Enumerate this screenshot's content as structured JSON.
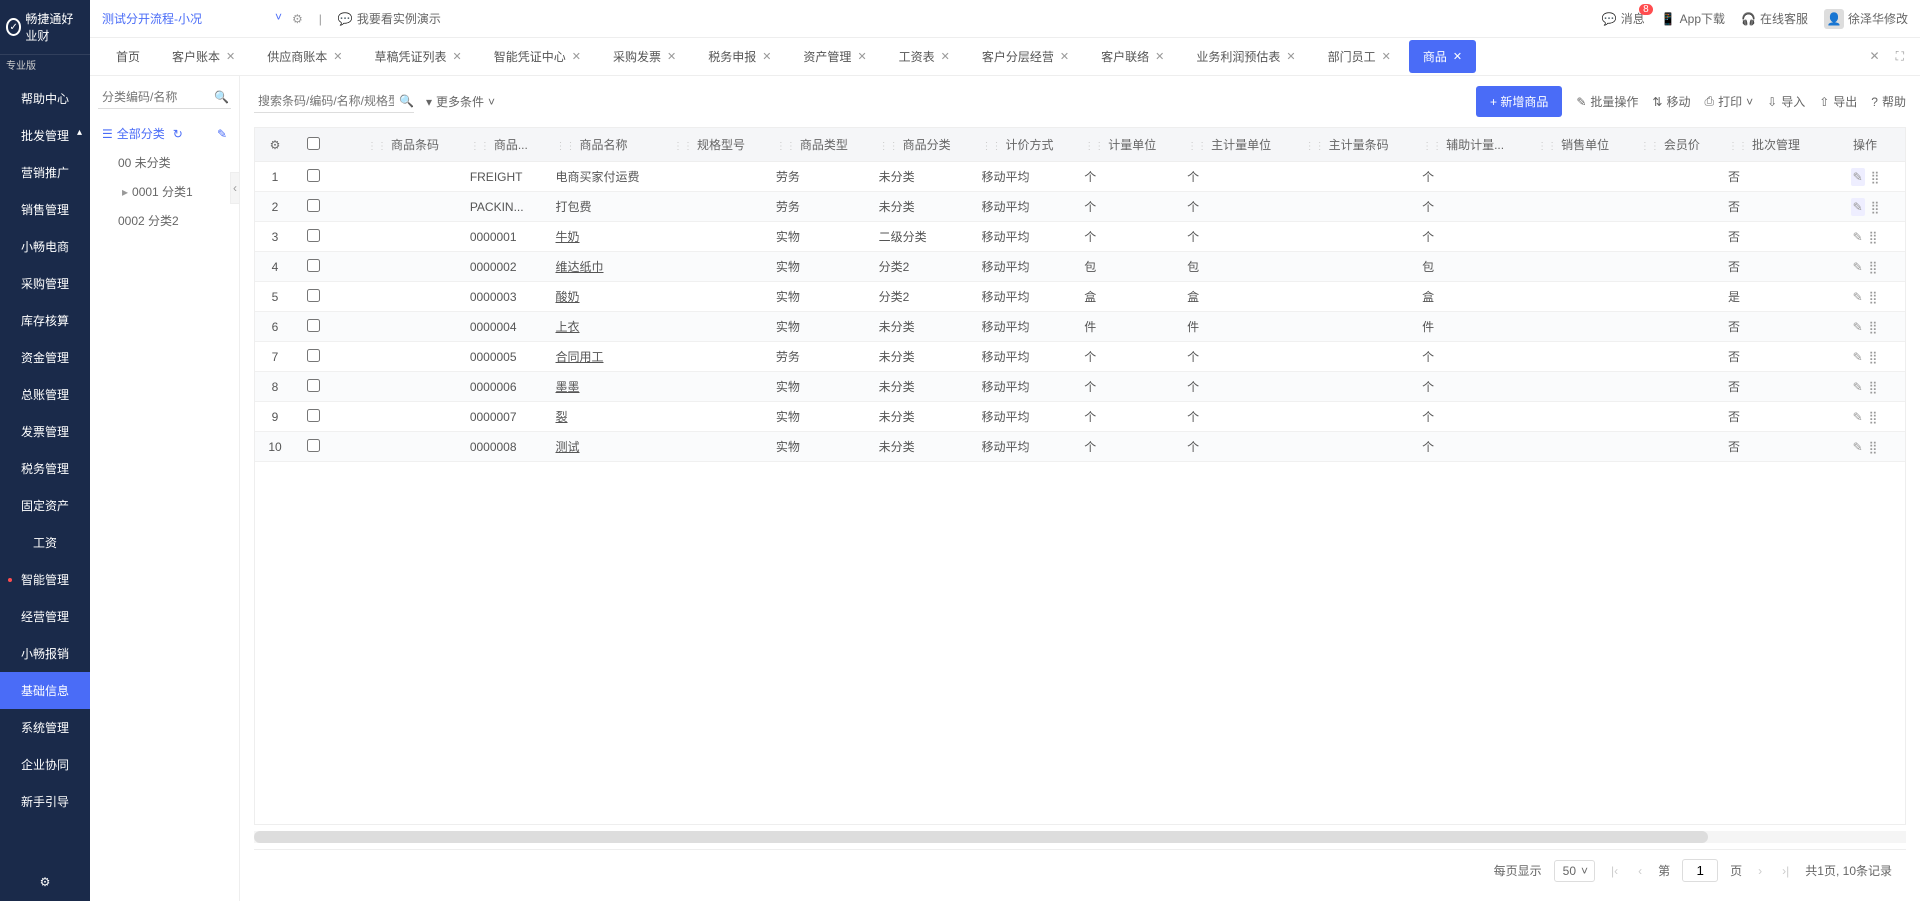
{
  "logo": {
    "brand": "畅捷通好业财",
    "edition": "专业版"
  },
  "sidebar": {
    "items": [
      {
        "label": "帮助中心",
        "active": false,
        "expanded": false
      },
      {
        "label": "批发管理",
        "active": false,
        "expanded": true
      },
      {
        "label": "营销推广",
        "active": false
      },
      {
        "label": "销售管理",
        "active": false
      },
      {
        "label": "小畅电商",
        "active": false
      },
      {
        "label": "采购管理",
        "active": false
      },
      {
        "label": "库存核算",
        "active": false
      },
      {
        "label": "资金管理",
        "active": false
      },
      {
        "label": "总账管理",
        "active": false
      },
      {
        "label": "发票管理",
        "active": false
      },
      {
        "label": "税务管理",
        "active": false
      },
      {
        "label": "固定资产",
        "active": false
      },
      {
        "label": "工资",
        "active": false
      },
      {
        "label": "智能管理",
        "active": false,
        "hasDot": true
      },
      {
        "label": "经营管理",
        "active": false
      },
      {
        "label": "小畅报销",
        "active": false
      },
      {
        "label": "基础信息",
        "active": true
      },
      {
        "label": "系统管理",
        "active": false
      },
      {
        "label": "企业协同",
        "active": false
      },
      {
        "label": "新手引导",
        "active": false
      }
    ]
  },
  "topbar": {
    "breadcrumb": "测试分开流程-小况",
    "demoLink": "我要看实例演示",
    "links": {
      "message": "消息",
      "messageBadge": "8",
      "download": "App下载",
      "service": "在线客服",
      "user": "徐泽华修改"
    }
  },
  "tabs": {
    "items": [
      {
        "label": "首页",
        "closable": false
      },
      {
        "label": "客户账本",
        "closable": true
      },
      {
        "label": "供应商账本",
        "closable": true
      },
      {
        "label": "草稿凭证列表",
        "closable": true
      },
      {
        "label": "智能凭证中心",
        "closable": true
      },
      {
        "label": "采购发票",
        "closable": true
      },
      {
        "label": "税务申报",
        "closable": true
      },
      {
        "label": "资产管理",
        "closable": true
      },
      {
        "label": "工资表",
        "closable": true
      },
      {
        "label": "客户分层经营",
        "closable": true
      },
      {
        "label": "客户联络",
        "closable": true
      },
      {
        "label": "业务利润预估表",
        "closable": true
      },
      {
        "label": "部门员工",
        "closable": true
      },
      {
        "label": "商品",
        "closable": true,
        "active": true
      }
    ]
  },
  "tree": {
    "searchPlaceholder": "分类编码/名称",
    "root": "全部分类",
    "nodes": [
      {
        "label": "00 未分类",
        "level": 2
      },
      {
        "label": "0001 分类1",
        "level": 1,
        "hasChild": true
      },
      {
        "label": "0002 分类2",
        "level": 2
      }
    ]
  },
  "toolbar": {
    "searchPlaceholder": "搜索条码/编码/名称/规格型号/别名",
    "moreFilter": "更多条件",
    "addBtn": "+ 新增商品",
    "batchOp": "批量操作",
    "move": "移动",
    "print": "打印",
    "import": "导入",
    "export": "导出",
    "help": "帮助"
  },
  "table": {
    "columns": [
      "",
      "",
      "",
      "商品条码",
      "商品...",
      "商品名称",
      "规格型号",
      "商品类型",
      "商品分类",
      "计价方式",
      "计量单位",
      "主计量单位",
      "主计量条码",
      "辅助计量...",
      "销售单位",
      "会员价",
      "批次管理",
      "操作"
    ],
    "rows": [
      {
        "idx": "1",
        "barcode": "",
        "code": "FREIGHT",
        "name": "电商买家付运费",
        "type": "劳务",
        "cat": "未分类",
        "price": "移动平均",
        "unit": "个",
        "mainUnit": "个",
        "aux": "个",
        "batch": "否",
        "editable": true
      },
      {
        "idx": "2",
        "barcode": "",
        "code": "PACKIN...",
        "name": "打包费",
        "type": "劳务",
        "cat": "未分类",
        "price": "移动平均",
        "unit": "个",
        "mainUnit": "个",
        "aux": "个",
        "batch": "否",
        "editable": true
      },
      {
        "idx": "3",
        "barcode": "",
        "code": "0000001",
        "name": "牛奶",
        "nameLink": true,
        "type": "实物",
        "cat": "二级分类",
        "price": "移动平均",
        "unit": "个",
        "mainUnit": "个",
        "aux": "个",
        "batch": "否"
      },
      {
        "idx": "4",
        "barcode": "",
        "code": "0000002",
        "name": "维达纸巾",
        "nameLink": true,
        "type": "实物",
        "cat": "分类2",
        "price": "移动平均",
        "unit": "包",
        "mainUnit": "包",
        "aux": "包",
        "batch": "否"
      },
      {
        "idx": "5",
        "barcode": "",
        "code": "0000003",
        "name": "酸奶",
        "nameLink": true,
        "type": "实物",
        "cat": "分类2",
        "price": "移动平均",
        "unit": "盒",
        "mainUnit": "盒",
        "aux": "盒",
        "batch": "是"
      },
      {
        "idx": "6",
        "barcode": "",
        "code": "0000004",
        "name": "上衣",
        "nameLink": true,
        "type": "实物",
        "cat": "未分类",
        "price": "移动平均",
        "unit": "件",
        "mainUnit": "件",
        "aux": "件",
        "batch": "否"
      },
      {
        "idx": "7",
        "barcode": "",
        "code": "0000005",
        "name": "合同用工",
        "nameLink": true,
        "type": "劳务",
        "cat": "未分类",
        "price": "移动平均",
        "unit": "个",
        "mainUnit": "个",
        "aux": "个",
        "batch": "否"
      },
      {
        "idx": "8",
        "barcode": "",
        "code": "0000006",
        "name": "墨墨",
        "nameLink": true,
        "type": "实物",
        "cat": "未分类",
        "price": "移动平均",
        "unit": "个",
        "mainUnit": "个",
        "aux": "个",
        "batch": "否"
      },
      {
        "idx": "9",
        "barcode": "",
        "code": "0000007",
        "name": "裂",
        "nameLink": true,
        "type": "实物",
        "cat": "未分类",
        "price": "移动平均",
        "unit": "个",
        "mainUnit": "个",
        "aux": "个",
        "batch": "否"
      },
      {
        "idx": "10",
        "barcode": "",
        "code": "0000008",
        "name": "测试",
        "nameLink": true,
        "type": "实物",
        "cat": "未分类",
        "price": "移动平均",
        "unit": "个",
        "mainUnit": "个",
        "aux": "个",
        "batch": "否"
      }
    ]
  },
  "pagination": {
    "perPageLabel": "每页显示",
    "perPage": "50",
    "pageLabel1": "第",
    "pageNum": "1",
    "pageLabel2": "页",
    "summary": "共1页, 10条记录"
  }
}
